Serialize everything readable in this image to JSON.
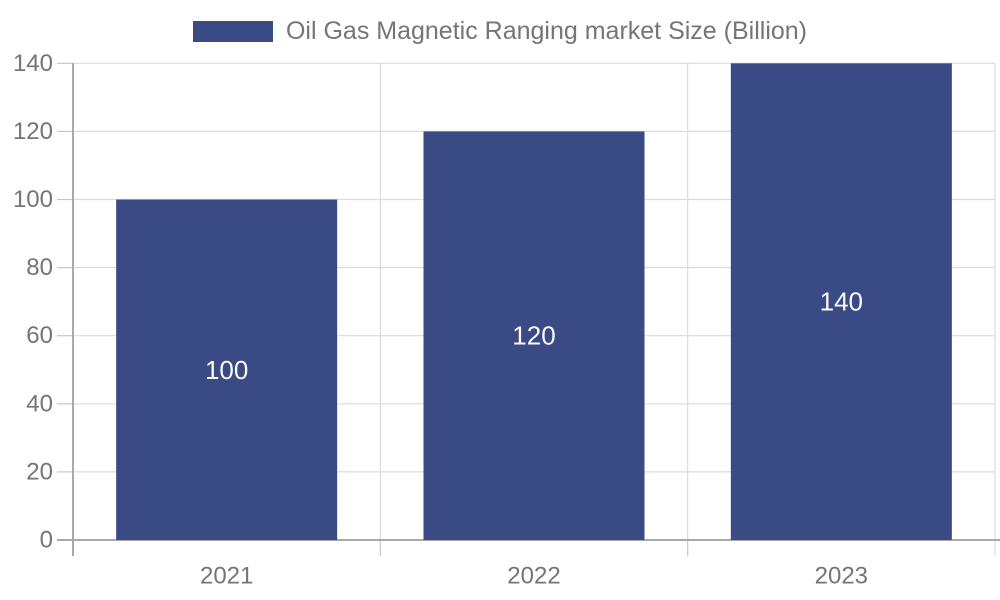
{
  "legend": {
    "label": "Oil Gas Magnetic Ranging market Size (Billion)"
  },
  "chart_data": {
    "type": "bar",
    "title": "Oil Gas Magnetic Ranging market Size (Billion)",
    "series_name": "Oil Gas Magnetic Ranging market Size (Billion)",
    "categories": [
      "2021",
      "2022",
      "2023"
    ],
    "values": [
      100,
      120,
      140
    ],
    "value_labels": [
      "100",
      "120",
      "140"
    ],
    "xlabel": "",
    "ylabel": "",
    "ylim": [
      0,
      140
    ],
    "yticks": [
      0,
      20,
      40,
      60,
      80,
      100,
      120,
      140
    ],
    "grid": true,
    "legend_position": "top-center",
    "colors": {
      "bar": "#3A4A85",
      "value_label": "#FAFAFA",
      "tick_label": "#757575",
      "grid_line": "#DCDCDC",
      "y_tick": "#C7C7C7",
      "x_tick": "#C7C7C7",
      "axis_line": "#A9A9A9",
      "right_border": "#E4E4E4"
    }
  }
}
